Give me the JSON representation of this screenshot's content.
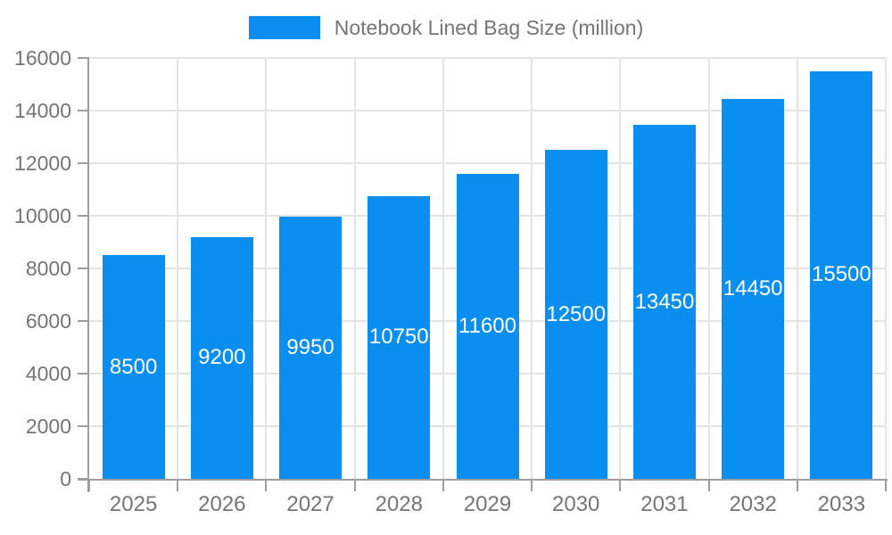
{
  "chart_data": {
    "type": "bar",
    "title": "Notebook Lined Bag Size (million)",
    "legend_label": "Notebook Lined Bag Size (million)",
    "legend_position": "top-center",
    "categories": [
      "2025",
      "2026",
      "2027",
      "2028",
      "2029",
      "2030",
      "2031",
      "2032",
      "2033"
    ],
    "values": [
      8500,
      9200,
      9950,
      10750,
      11600,
      12500,
      13450,
      14450,
      15500
    ],
    "xlabel": "",
    "ylabel": "",
    "ylim": [
      0,
      16000
    ],
    "ytick_step": 2000,
    "yticks": [
      0,
      2000,
      4000,
      6000,
      8000,
      10000,
      12000,
      14000,
      16000
    ],
    "grid": "both",
    "value_labels": "inside-center-white",
    "colors": {
      "bar": "#0A8FF0",
      "value_label": "#FFFFFF",
      "axis_text": "#757575",
      "grid_line": "#E4E4E4",
      "axis_line": "#9E9E9E",
      "background": "#FFFFFF"
    }
  }
}
